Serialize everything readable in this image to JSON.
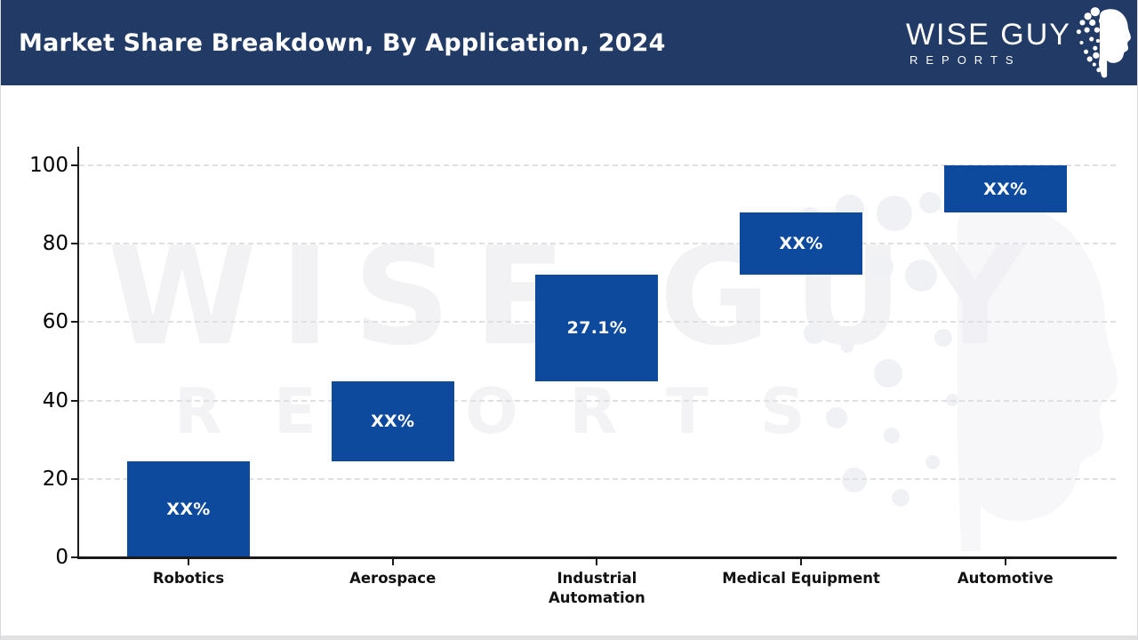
{
  "header": {
    "title": "Market Share Breakdown, By Application, 2024",
    "logo": {
      "wordmark": "WISE GUY",
      "subtext": "REPORTS"
    }
  },
  "watermark": {
    "wordmark": "WISE GUY",
    "subtext": "REPORTS"
  },
  "chart_data": {
    "type": "bar",
    "subtype": "floating-waterfall",
    "title": "Market Share Breakdown, By Application, 2024",
    "categories": [
      "Robotics",
      "Aerospace",
      "Industrial Automation",
      "Medical Equipment",
      "Automotive"
    ],
    "series": [
      {
        "name": "Market share (%)",
        "segments": [
          {
            "category": "Robotics",
            "start": 0,
            "end": 24.5,
            "label": "XX%"
          },
          {
            "category": "Aerospace",
            "start": 24.5,
            "end": 44.9,
            "label": "XX%"
          },
          {
            "category": "Industrial Automation",
            "start": 44.9,
            "end": 72.0,
            "label": "27.1%"
          },
          {
            "category": "Medical Equipment",
            "start": 72.0,
            "end": 87.9,
            "label": "XX%"
          },
          {
            "category": "Automotive",
            "start": 87.9,
            "end": 100,
            "label": "XX%"
          }
        ]
      }
    ],
    "xlabel": "",
    "ylabel": "",
    "ylim": [
      0,
      105
    ],
    "yticks": [
      0,
      20,
      40,
      60,
      80,
      100
    ],
    "grid": "horizontal-dashed",
    "legend": "none",
    "bar_color": "#0d4a9e",
    "bar_label_color": "#ffffff"
  },
  "colors": {
    "header_bg": "#213a66",
    "bar": "#0d4a9e",
    "axis": "#1a1a1a",
    "gridline": "#e0e0e3",
    "watermark": "#f2f2f5",
    "page_bg": "#ffffff"
  }
}
